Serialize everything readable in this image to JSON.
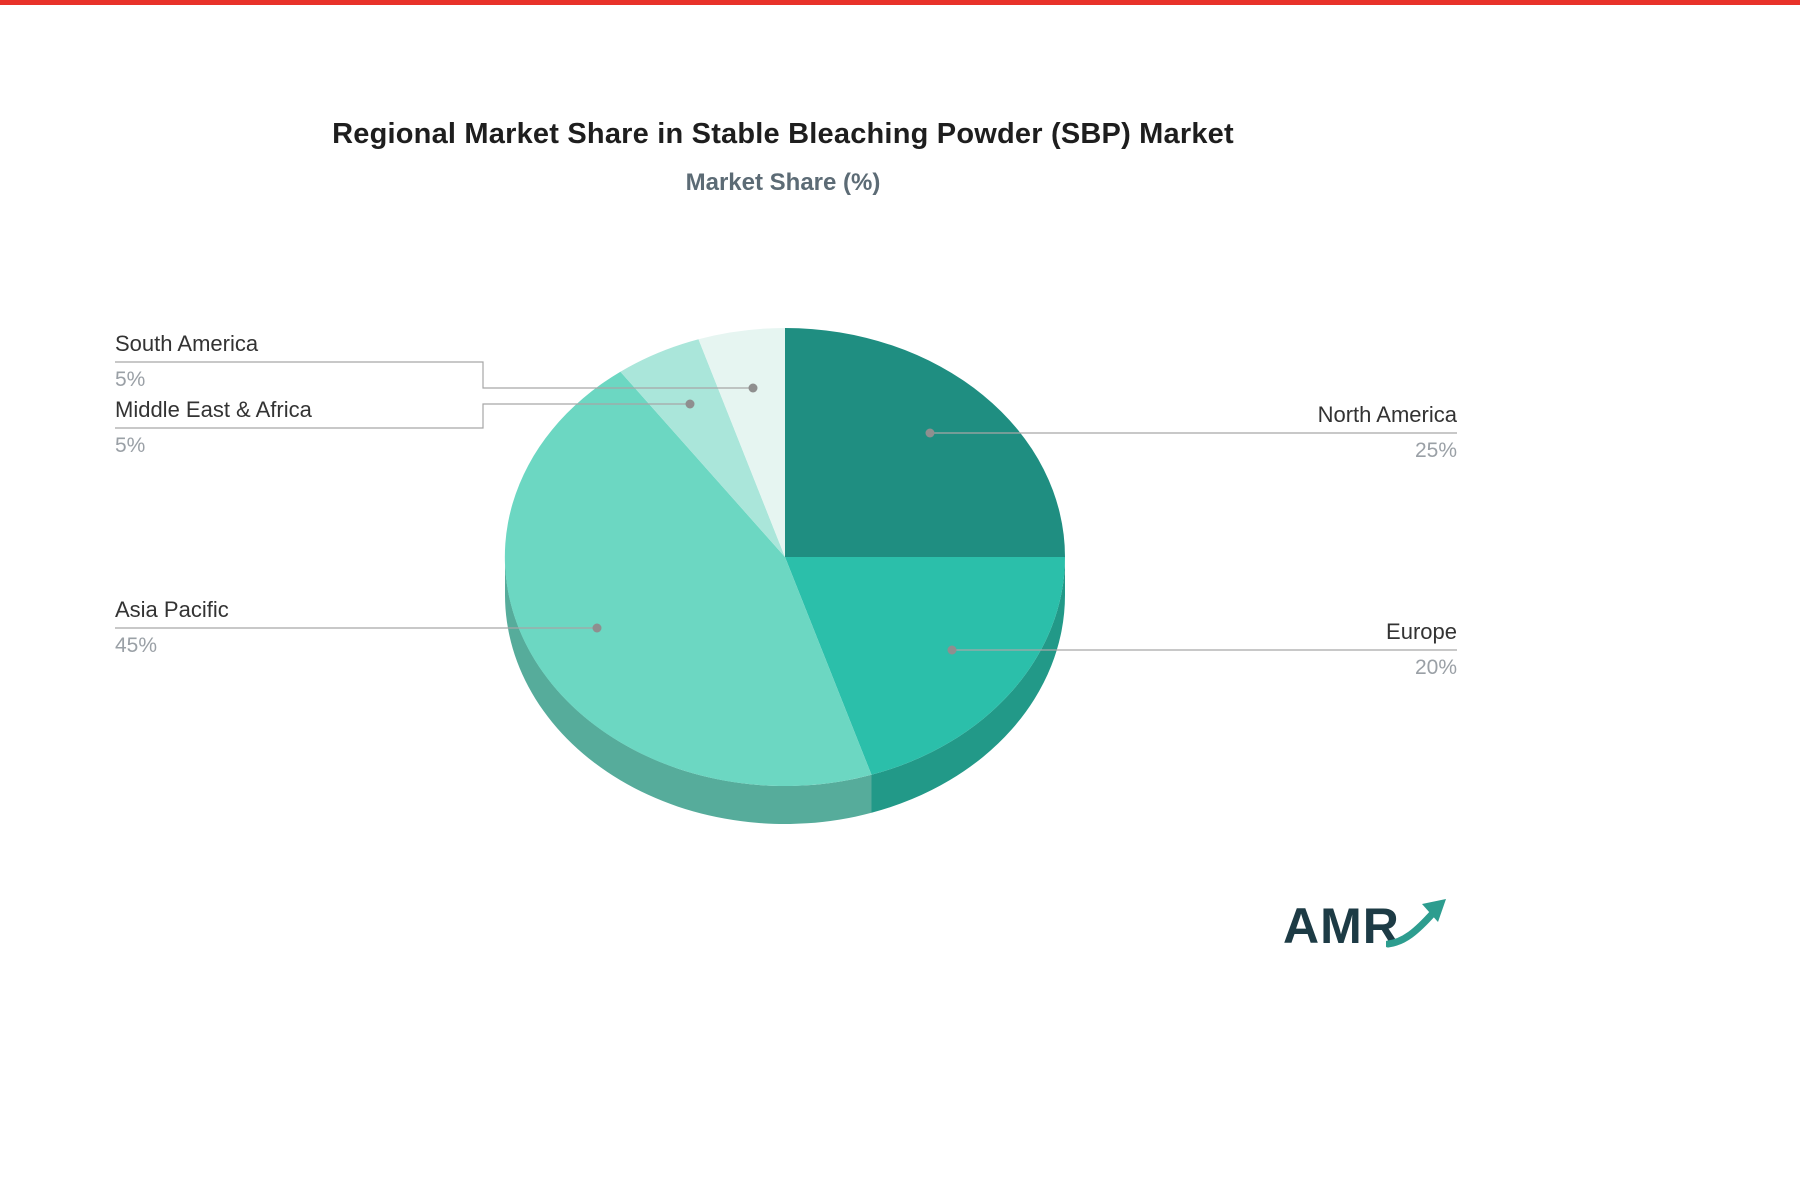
{
  "chart_data": {
    "type": "pie",
    "title": "Regional Market Share in Stable Bleaching Powder (SBP) Market",
    "subtitle": "Market Share (%)",
    "unit": "%",
    "start_angle_deg": -90,
    "direction": "clockwise",
    "effect": "3d-depth",
    "legend": "none",
    "slices": [
      {
        "label": "North America",
        "value": 25,
        "display": "25%",
        "color": "#1f8e81"
      },
      {
        "label": "Europe",
        "value": 20,
        "display": "20%",
        "color": "#2bbfaa"
      },
      {
        "label": "Asia Pacific",
        "value": 45,
        "display": "45%",
        "color": "#6cd7c2"
      },
      {
        "label": "Middle East & Africa",
        "value": 5,
        "display": "5%",
        "color": "#aae6da"
      },
      {
        "label": "South America",
        "value": 5,
        "display": "5%",
        "color": "#e6f5f1"
      }
    ]
  },
  "logo": {
    "text": "AMR"
  },
  "colors": {
    "accent_top_bar": "#e8322a",
    "title": "#1e1e1e",
    "subtitle": "#5c6b75",
    "label_text": "#333333",
    "value_text": "#9aa0a6",
    "leader_line": "#a6a6a6",
    "leader_dot": "#8f8f8f",
    "logo_text": "#1d3b45",
    "logo_arrow": "#2d9d8f"
  }
}
